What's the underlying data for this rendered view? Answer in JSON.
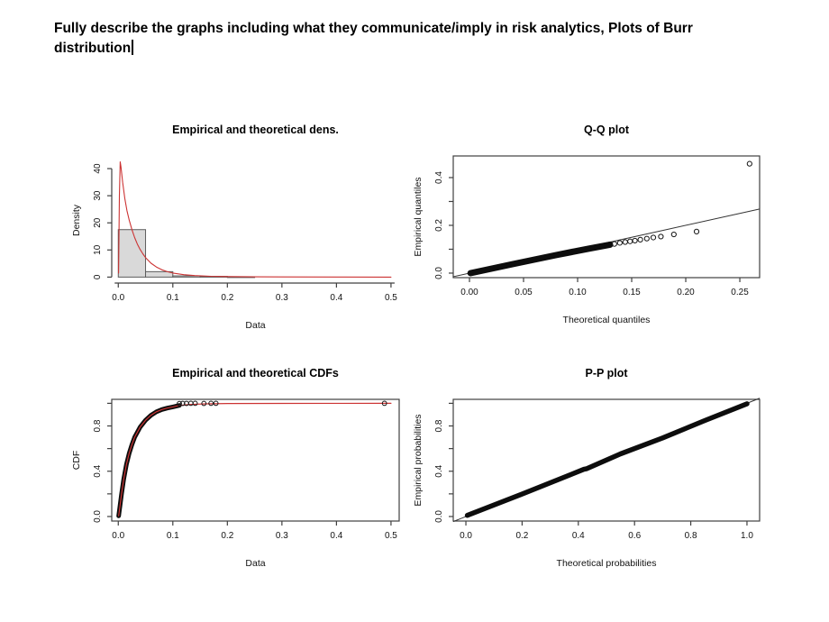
{
  "page": {
    "background": "#ffffff"
  },
  "document": {
    "prompt_lines": [
      "Fully describe the graphs including what they communicate/imply in risk analytics, Plots of Burr",
      "distribution"
    ]
  },
  "figure": {
    "axis_color": "#404040",
    "text_color": "#111111",
    "theoretical_red": "#cc3333",
    "hist_fill": "#d9d9d9",
    "hist_stroke": "#5c5c5c",
    "point_color": "#141414"
  },
  "chart_data": [
    {
      "id": "density",
      "type": "bar",
      "title": "Empirical and theoretical dens.",
      "xlabel": "Data",
      "ylabel": "Density",
      "xlim": [
        -0.012,
        0.515
      ],
      "ylim": [
        -2.2,
        44.0
      ],
      "box": false,
      "xticks": {
        "values": [
          0.0,
          0.1,
          0.2,
          0.3,
          0.4,
          0.5
        ],
        "labels": [
          "0.0",
          "0.1",
          "0.2",
          "0.3",
          "0.4",
          "0.5"
        ]
      },
      "yticks": {
        "values": [
          0,
          10,
          20,
          30,
          40
        ],
        "labels": [
          "0",
          "10",
          "20",
          "30",
          "40"
        ]
      },
      "series": [
        {
          "kind": "hist",
          "edges": [
            0.0,
            0.05,
            0.1,
            0.15,
            0.2,
            0.25
          ],
          "heights": [
            17.5,
            2.0,
            0.45,
            0.25,
            0.1
          ],
          "fill": "#d9d9d9",
          "stroke": "#5c5c5c"
        },
        {
          "kind": "line",
          "color": "#cc3333",
          "width": 1.1,
          "points": [
            [
              0.0006,
              1.5
            ],
            [
              0.002,
              30
            ],
            [
              0.0035,
              42.5
            ],
            [
              0.005,
              40.5
            ],
            [
              0.008,
              35
            ],
            [
              0.012,
              29
            ],
            [
              0.016,
              24.5
            ],
            [
              0.02,
              21
            ],
            [
              0.025,
              17.5
            ],
            [
              0.03,
              14.6
            ],
            [
              0.035,
              12.2
            ],
            [
              0.04,
              10.2
            ],
            [
              0.045,
              8.6
            ],
            [
              0.05,
              7.2
            ],
            [
              0.06,
              5.1
            ],
            [
              0.07,
              3.7
            ],
            [
              0.08,
              2.7
            ],
            [
              0.09,
              2.0
            ],
            [
              0.1,
              1.5
            ],
            [
              0.12,
              0.9
            ],
            [
              0.14,
              0.55
            ],
            [
              0.17,
              0.3
            ],
            [
              0.2,
              0.18
            ],
            [
              0.25,
              0.09
            ],
            [
              0.3,
              0.05
            ],
            [
              0.4,
              0.02
            ],
            [
              0.5,
              0.01
            ]
          ]
        }
      ]
    },
    {
      "id": "qq",
      "type": "scatter",
      "title": "Q-Q plot",
      "xlabel": "Theoretical quantiles",
      "ylabel": "Empirical quantiles",
      "xlim": [
        -0.015,
        0.2683
      ],
      "ylim": [
        -0.019,
        0.4906
      ],
      "box": true,
      "xticks": {
        "values": [
          0.0,
          0.05,
          0.1,
          0.15,
          0.2,
          0.25
        ],
        "labels": [
          "0.00",
          "0.05",
          "0.10",
          "0.15",
          "0.20",
          "0.25"
        ]
      },
      "yticks": {
        "values": [
          0.0,
          0.1,
          0.2,
          0.3,
          0.4
        ],
        "labels": [
          "0.0",
          "",
          "0.2",
          "",
          "0.4"
        ]
      },
      "series": [
        {
          "kind": "refline",
          "from": [
            -0.015,
            -0.015
          ],
          "to": [
            0.2683,
            0.2683
          ],
          "color": "#333333",
          "width": 1
        },
        {
          "kind": "band",
          "color": "#0d0d0d",
          "width": 7,
          "points": [
            [
              0.001,
              0.0
            ],
            [
              0.04,
              0.0378
            ],
            [
              0.08,
              0.0752
            ],
            [
              0.11,
              0.102
            ],
            [
              0.13,
              0.119
            ]
          ]
        },
        {
          "kind": "scatter",
          "color": "#141414",
          "r": 2.6,
          "points": [
            [
              0.134,
              0.122
            ],
            [
              0.139,
              0.1265
            ],
            [
              0.144,
              0.13
            ],
            [
              0.1485,
              0.133
            ],
            [
              0.153,
              0.136
            ],
            [
              0.158,
              0.14
            ],
            [
              0.164,
              0.1445
            ],
            [
              0.17,
              0.149
            ],
            [
              0.177,
              0.153
            ],
            [
              0.189,
              0.162
            ],
            [
              0.21,
              0.174
            ],
            [
              0.259,
              0.458
            ]
          ]
        }
      ]
    },
    {
      "id": "cdf",
      "type": "line",
      "title": "Empirical and theoretical CDFs",
      "xlabel": "Data",
      "ylabel": "CDF",
      "xlim": [
        -0.012,
        0.515
      ],
      "ylim": [
        -0.04,
        1.035
      ],
      "box": true,
      "xticks": {
        "values": [
          0.0,
          0.1,
          0.2,
          0.3,
          0.4,
          0.5
        ],
        "labels": [
          "0.0",
          "0.1",
          "0.2",
          "0.3",
          "0.4",
          "0.5"
        ]
      },
      "yticks": {
        "values": [
          0.0,
          0.2,
          0.4,
          0.6,
          0.8,
          1.0
        ],
        "labels": [
          "0.0",
          "",
          "0.4",
          "",
          "0.8",
          ""
        ]
      },
      "series": [
        {
          "kind": "band",
          "color": "#0d0d0d",
          "width": 5,
          "points": [
            [
              0.0008,
              0.005
            ],
            [
              0.003,
              0.09
            ],
            [
              0.006,
              0.2
            ],
            [
              0.01,
              0.33
            ],
            [
              0.015,
              0.46
            ],
            [
              0.02,
              0.56
            ],
            [
              0.025,
              0.635
            ],
            [
              0.03,
              0.7
            ],
            [
              0.04,
              0.79
            ],
            [
              0.05,
              0.85
            ],
            [
              0.06,
              0.895
            ],
            [
              0.07,
              0.925
            ],
            [
              0.08,
              0.945
            ],
            [
              0.09,
              0.958
            ],
            [
              0.1,
              0.968
            ],
            [
              0.112,
              0.982
            ]
          ]
        },
        {
          "kind": "line",
          "color": "#cc3333",
          "width": 1.2,
          "points": [
            [
              0.0008,
              0.005
            ],
            [
              0.003,
              0.09
            ],
            [
              0.006,
              0.2
            ],
            [
              0.01,
              0.33
            ],
            [
              0.015,
              0.46
            ],
            [
              0.02,
              0.56
            ],
            [
              0.025,
              0.635
            ],
            [
              0.03,
              0.7
            ],
            [
              0.04,
              0.79
            ],
            [
              0.05,
              0.85
            ],
            [
              0.06,
              0.895
            ],
            [
              0.07,
              0.925
            ],
            [
              0.08,
              0.945
            ],
            [
              0.09,
              0.958
            ],
            [
              0.1,
              0.968
            ],
            [
              0.112,
              0.982
            ],
            [
              0.13,
              0.99
            ],
            [
              0.16,
              0.995
            ],
            [
              0.2,
              0.998
            ],
            [
              0.3,
              0.9995
            ],
            [
              0.5,
              1.0
            ]
          ]
        },
        {
          "kind": "scatter",
          "color": "#141414",
          "r": 2.4,
          "points": [
            [
              0.112,
              0.998
            ],
            [
              0.118,
              0.999
            ],
            [
              0.125,
              0.999
            ],
            [
              0.133,
              1.0
            ],
            [
              0.141,
              1.0
            ],
            [
              0.157,
              0.999
            ],
            [
              0.17,
              1.0
            ],
            [
              0.179,
              1.0
            ],
            [
              0.488,
              1.0
            ]
          ]
        }
      ]
    },
    {
      "id": "pp",
      "type": "scatter",
      "title": "P-P plot",
      "xlabel": "Theoretical probabilities",
      "ylabel": "Empirical probabilities",
      "xlim": [
        -0.045,
        1.045
      ],
      "ylim": [
        -0.04,
        1.035
      ],
      "box": true,
      "xticks": {
        "values": [
          0.0,
          0.2,
          0.4,
          0.6,
          0.8,
          1.0
        ],
        "labels": [
          "0.0",
          "0.2",
          "0.4",
          "0.6",
          "0.8",
          "1.0"
        ]
      },
      "yticks": {
        "values": [
          0.0,
          0.2,
          0.4,
          0.6,
          0.8,
          1.0
        ],
        "labels": [
          "0.0",
          "",
          "0.4",
          "",
          "0.8",
          ""
        ]
      },
      "series": [
        {
          "kind": "refline",
          "from": [
            -0.045,
            -0.045
          ],
          "to": [
            1.045,
            1.045
          ],
          "color": "#333333",
          "width": 1
        },
        {
          "kind": "band",
          "color": "#0d0d0d",
          "width": 5.5,
          "points": [
            [
              0.005,
              0.01
            ],
            [
              0.2,
              0.198
            ],
            [
              0.42,
              0.417
            ],
            [
              0.43,
              0.423
            ],
            [
              0.55,
              0.553
            ],
            [
              0.7,
              0.694
            ],
            [
              0.85,
              0.848
            ],
            [
              1.0,
              0.996
            ]
          ]
        }
      ]
    }
  ]
}
